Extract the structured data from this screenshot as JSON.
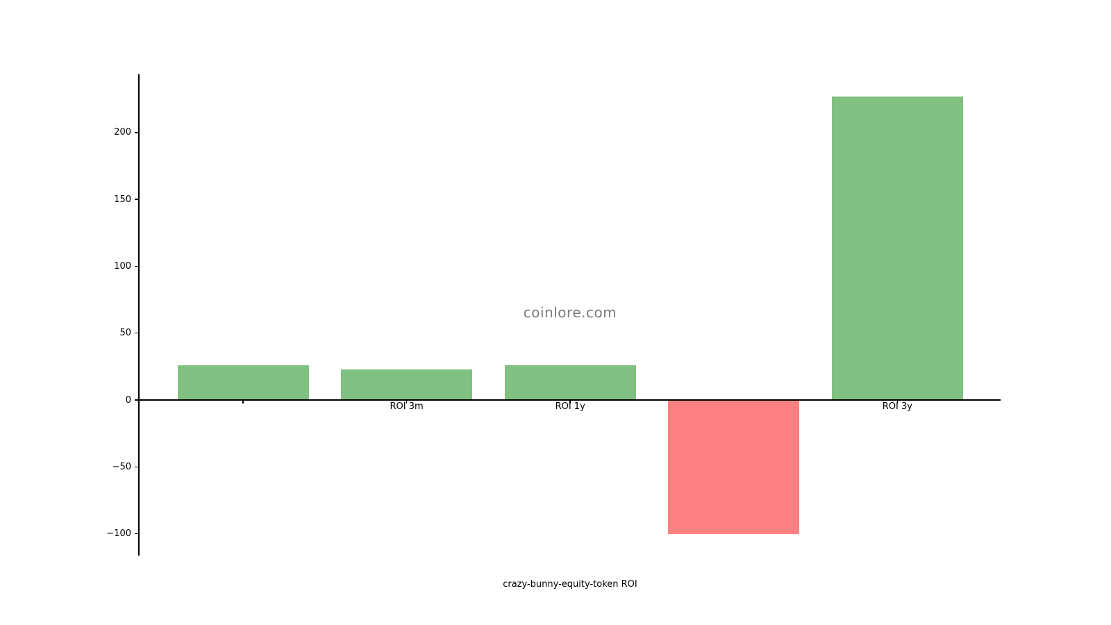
{
  "watermark": {
    "text": "coinlore.com",
    "color": "#7a7a7a"
  },
  "chart_data": {
    "type": "bar",
    "title": "",
    "xlabel": "crazy-bunny-equity-token ROI",
    "ylabel": "",
    "categories": [
      "",
      "ROI 3m",
      "ROI 1y",
      "",
      "ROI 3y"
    ],
    "values": [
      26,
      23,
      26,
      -100,
      227
    ],
    "bar_colors": [
      "#80c080",
      "#80c080",
      "#80c080",
      "#ff8080",
      "#80c080"
    ],
    "positive_color": "#80c080",
    "negative_color": "#ff8080",
    "axis_color": "#000000",
    "yticks": [
      200,
      150,
      100,
      50,
      0,
      -50,
      -100
    ],
    "ylim": [
      -116.4,
      243.4
    ],
    "grid": false,
    "legend_position": null
  }
}
